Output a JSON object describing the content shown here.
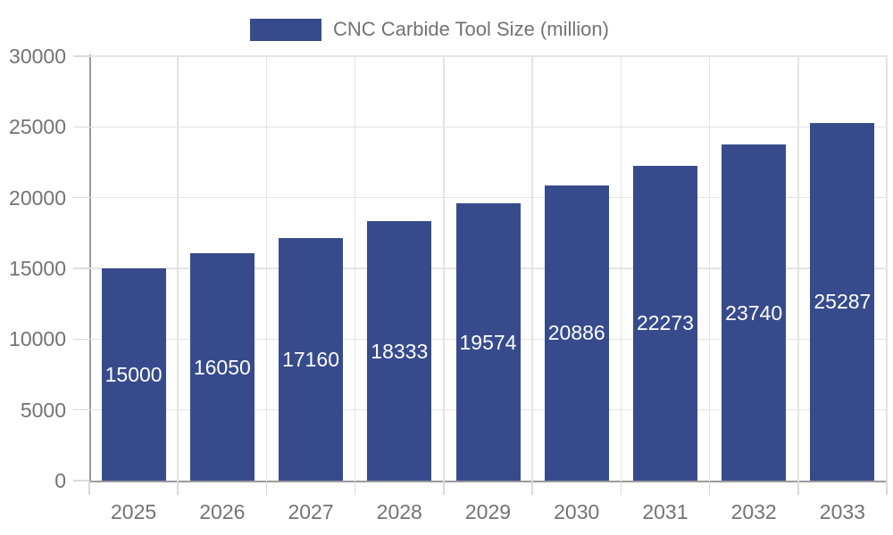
{
  "legend": {
    "label": "CNC Carbide Tool Size (million)"
  },
  "chart_data": {
    "type": "bar",
    "title": "CNC Carbide Tool Size (million)",
    "categories": [
      "2025",
      "2026",
      "2027",
      "2028",
      "2029",
      "2030",
      "2031",
      "2032",
      "2033"
    ],
    "values": [
      15000,
      16050,
      17160,
      18333,
      19574,
      20886,
      22273,
      23740,
      25287
    ],
    "xlabel": "",
    "ylabel": "",
    "ylim": [
      0,
      30000
    ],
    "yticks": [
      0,
      5000,
      10000,
      15000,
      20000,
      25000,
      30000
    ],
    "grid": true,
    "vertical_grid": true,
    "legend_position": "top-center",
    "value_label_position": "inside-center",
    "colors": {
      "bar": "#374b8c",
      "value_label": "#ffffff",
      "axis_text": "#737373",
      "grid_line": "#e4e4e4",
      "tick_line": "#dadada",
      "axis_line": "#9a9a9a",
      "background": "#ffffff"
    }
  }
}
